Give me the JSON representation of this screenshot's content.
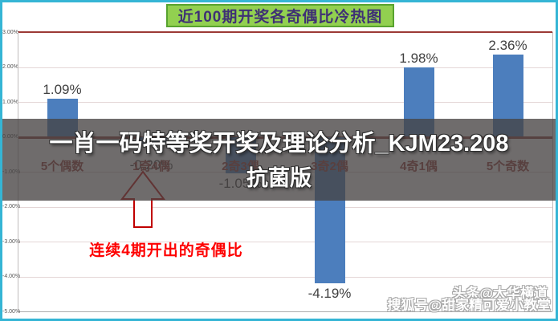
{
  "frame": {
    "border_color": "#35b5d5"
  },
  "title": {
    "text": "近100期开奖各奇偶比冷热图",
    "bg_color": "#92d050",
    "text_color": "#3f3075"
  },
  "chart_data": {
    "type": "bar",
    "title": "近100期开奖各奇偶比冷热图",
    "categories": [
      "5个偶数",
      "1奇4偶",
      "2奇3偶",
      "3奇2偶",
      "4奇1偶",
      "5个奇数"
    ],
    "values": [
      1.09,
      -0.2,
      -1.05,
      -4.19,
      1.98,
      2.36
    ],
    "value_labels": [
      "1.09%",
      "-0.20%",
      "-1.05%",
      "-4.19%",
      "1.98%",
      "2.36%"
    ],
    "ylim": [
      -5,
      3
    ],
    "ytick_labels": [
      "3.00%",
      "2.00%",
      "1.00%",
      "0.00%",
      "-1.00%",
      "-2.00%",
      "-3.00%",
      "-4.00%",
      "-5.00%"
    ],
    "grid": true,
    "legend": false,
    "bar_color": "#4c7ebd",
    "category_color": "#953735",
    "value_label_color": "#404040",
    "zero_line_color": "#8e3b38",
    "top_line_color": "#9c3a36",
    "gridline_color": "#e4d6d6"
  },
  "overlay_banner": {
    "line1": "一肖一码特等奖开奖及理论分析_KJM23.208",
    "line2": "抗菌版",
    "text_color": "#ffffff"
  },
  "annotation": {
    "text": "连续4期开出的奇偶比",
    "color": "#fe0000",
    "arrow_color": "#c00000"
  },
  "watermarks": {
    "top": "头条@大华横道",
    "bottom": "搜狐号@甜家精可爱小教堂"
  }
}
